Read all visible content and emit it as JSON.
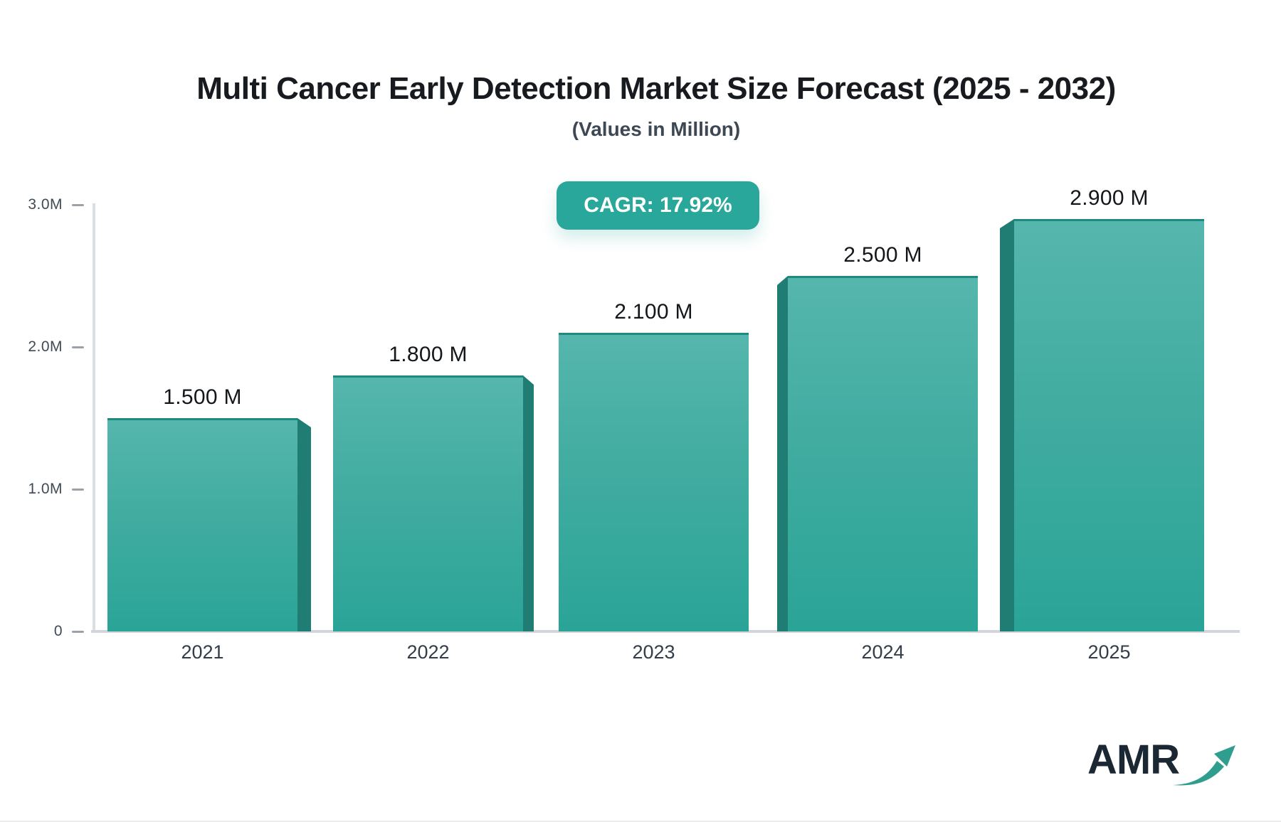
{
  "header": {
    "title": "Multi Cancer Early Detection Market Size Forecast (2025 - 2032)",
    "subtitle": "(Values in Million)",
    "cagr_badge": "CAGR: 17.92%"
  },
  "chart_data": {
    "type": "bar",
    "categories": [
      "2021",
      "2022",
      "2023",
      "2024",
      "2025"
    ],
    "values": [
      1.5,
      1.8,
      2.1,
      2.5,
      2.9
    ],
    "bar_labels": [
      "1.500 M",
      "1.800 M",
      "2.100 M",
      "2.500 M",
      "2.900 M"
    ],
    "yticks": [
      "3.0M",
      "2.0M",
      "1.0M",
      "0"
    ],
    "ylim": [
      0,
      3.0
    ],
    "title": "Multi Cancer Early Detection Market Size Forecast (2025 - 2032)",
    "subtitle": "(Values in Million)",
    "xlabel": "",
    "ylabel": "",
    "grid": false,
    "legend": "none",
    "style": "3d-extruded-bars",
    "colors": {
      "bar_gradient_top": "#55b6ad",
      "bar_gradient_bottom": "#2aa497",
      "bar_side_3d": "#1f7d73",
      "badge_background": "#2aa79b",
      "title_text": "#171b1f",
      "subtitle_text": "#3d4854",
      "axis_line": "#d2d6db",
      "axis_text": "#3f4a55"
    }
  },
  "logo": {
    "text": "AMR",
    "arrow_icon": "trend-up-arrow"
  }
}
